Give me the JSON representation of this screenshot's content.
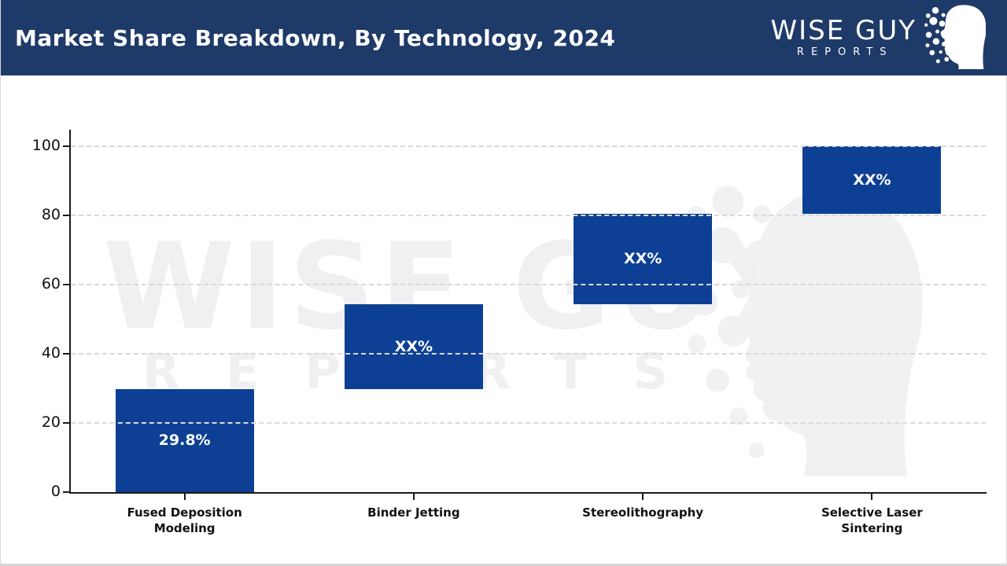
{
  "header": {
    "title": "Market Share Breakdown, By Technology, 2024",
    "logo": {
      "line1": "WISE GUY",
      "line2": "REPORTS"
    }
  },
  "watermark": {
    "line1": "WISE GUY",
    "line2": "REPORTS"
  },
  "colors": {
    "header_background": "#1e3a68",
    "bar_fill": "#0d4094",
    "bar_label": "#ffffff",
    "gridline": "#d9d9d9",
    "axis": "#1a1a1a",
    "watermark": "#f0f0f2"
  },
  "chart_data": {
    "type": "waterfall",
    "title": "Market Share Breakdown, By Technology, 2024",
    "xlabel": "",
    "ylabel": "",
    "ylim": [
      0,
      100
    ],
    "yticks": [
      0,
      20,
      40,
      60,
      80,
      100
    ],
    "grid": "horizontal dashed",
    "legend": "none",
    "categories": [
      "Fused Deposition Modeling",
      "Binder Jetting",
      "Stereolithography",
      "Selective Laser Sintering"
    ],
    "category_label_lines": [
      [
        "Fused Deposition",
        "Modeling"
      ],
      [
        "Binder Jetting"
      ],
      [
        "Stereolithography"
      ],
      [
        "Selective Laser",
        "Sintering"
      ]
    ],
    "segments": [
      {
        "category": "Fused Deposition Modeling",
        "start": 0,
        "end": 29.8,
        "label": "29.8%"
      },
      {
        "category": "Binder Jetting",
        "start": 29.8,
        "end": 54.4,
        "label": "XX%"
      },
      {
        "category": "Stereolithography",
        "start": 54.4,
        "end": 80.4,
        "label": "XX%"
      },
      {
        "category": "Selective Laser Sintering",
        "start": 80.4,
        "end": 100,
        "label": "XX%"
      }
    ]
  }
}
